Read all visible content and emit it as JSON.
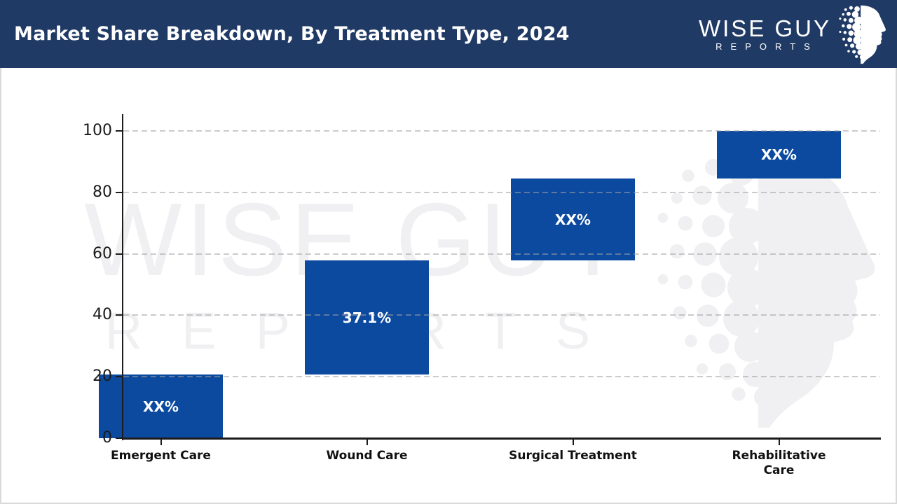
{
  "header": {
    "title": "Market Share Breakdown, By Treatment Type, 2024",
    "logo": {
      "brand_line1": "WISE GUY",
      "brand_line2": "REPORTS"
    }
  },
  "watermark": {
    "line1": "WISE GUY",
    "line2": "REPORTS"
  },
  "chart_data": {
    "type": "bar",
    "variant": "waterfall",
    "title": "Market Share Breakdown, By Treatment Type, 2024",
    "categories": [
      "Emergent Care",
      "Wound Care",
      "Surgical Treatment",
      "Rehabilitative Care"
    ],
    "category_label_lines": [
      [
        "Emergent Care"
      ],
      [
        "Wound Care"
      ],
      [
        "Surgical Treatment"
      ],
      [
        "Rehabilitative",
        "Care"
      ]
    ],
    "segments": [
      {
        "category": "Emergent Care",
        "start": 0,
        "end": 20.7,
        "label": "XX%"
      },
      {
        "category": "Wound Care",
        "start": 20.7,
        "end": 57.8,
        "label": "37.1%"
      },
      {
        "category": "Surgical Treatment",
        "start": 57.8,
        "end": 84.4,
        "label": "XX%"
      },
      {
        "category": "Rehabilitative Care",
        "start": 84.4,
        "end": 100,
        "label": "XX%"
      }
    ],
    "ylim": [
      0,
      100
    ],
    "yticks": [
      0,
      20,
      40,
      60,
      80,
      100
    ],
    "xlabel": "",
    "ylabel": "",
    "grid": {
      "axis": "y",
      "style": "dashed",
      "drawn_over_bars": true
    },
    "legend": "none"
  },
  "colors": {
    "header_bg": "#203A66",
    "header_text": "#FFFFFF",
    "bar": "#0C4AA0",
    "bar_label": "#FFFFFF",
    "axis": "#1C1C1C",
    "tick_label": "#1A1A1A",
    "category_label": "#111111",
    "gridline": "#AAAAAA",
    "watermark": "#F0F0F2",
    "panel_border": "#D9D9D9"
  }
}
